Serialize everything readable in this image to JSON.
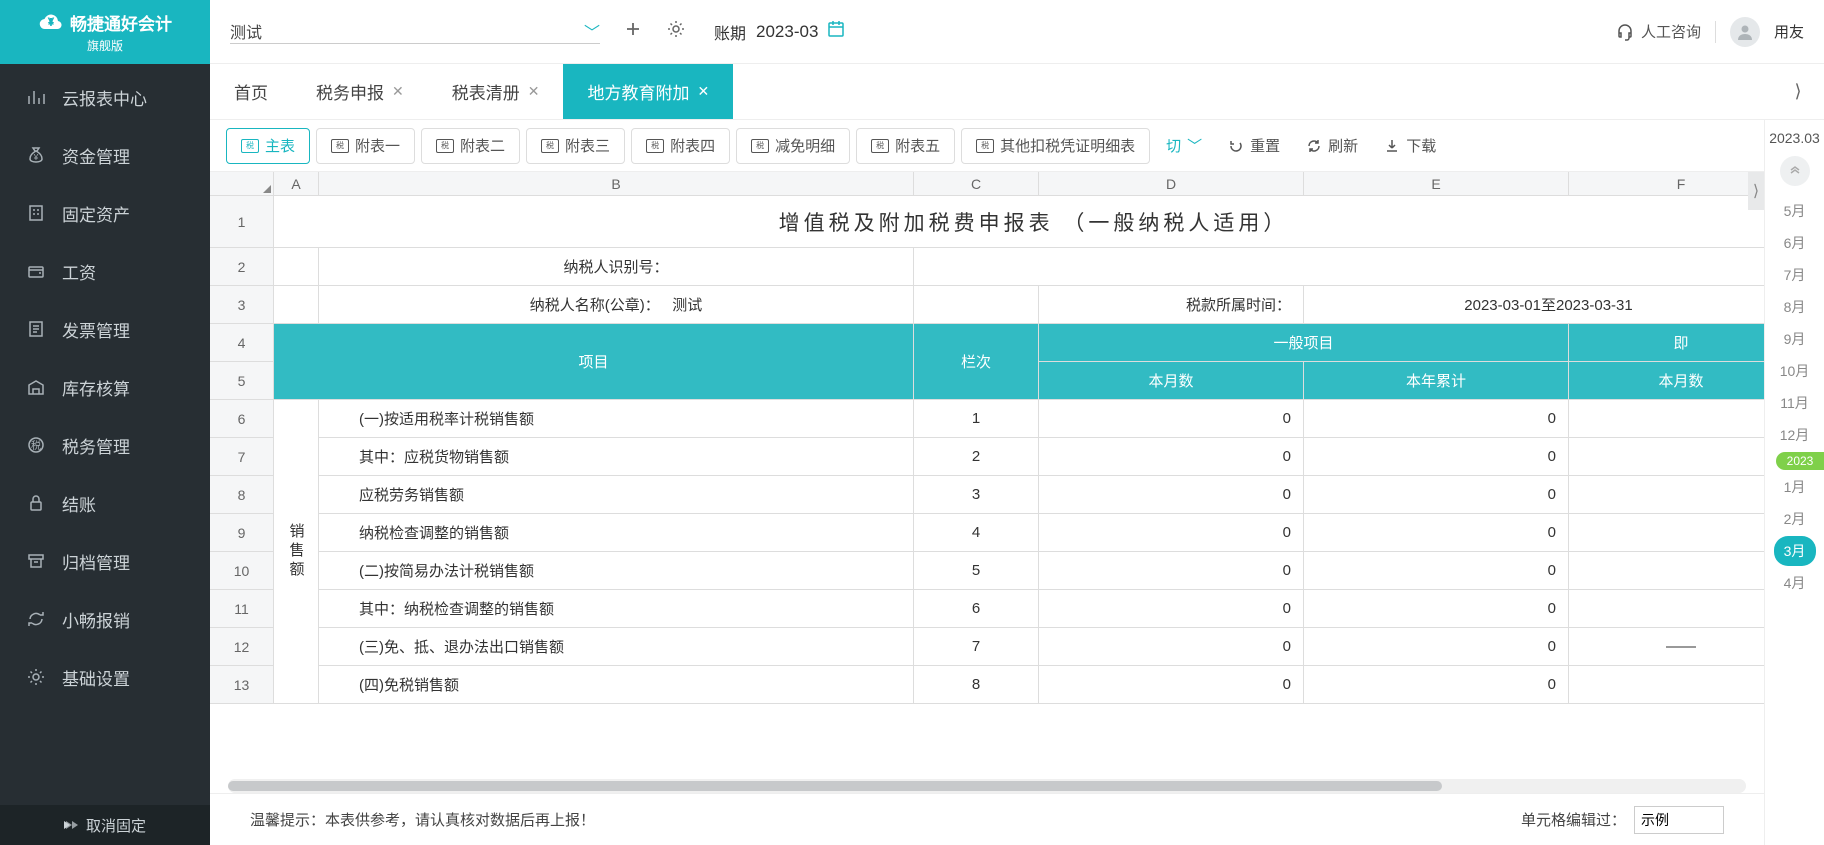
{
  "brand": {
    "name": "畅捷通好会计",
    "edition": "旗舰版"
  },
  "sidebar": {
    "items": [
      {
        "label": "云报表中心"
      },
      {
        "label": "资金管理"
      },
      {
        "label": "固定资产"
      },
      {
        "label": "工资"
      },
      {
        "label": "发票管理"
      },
      {
        "label": "库存核算"
      },
      {
        "label": "税务管理"
      },
      {
        "label": "结账"
      },
      {
        "label": "归档管理"
      },
      {
        "label": "小畅报销"
      },
      {
        "label": "基础设置"
      }
    ],
    "collapse": "取消固定"
  },
  "topbar": {
    "org": "测试",
    "period_label": "账期",
    "period_value": "2023-03",
    "consult": "人工咨询",
    "user": "用友"
  },
  "tabs": [
    {
      "label": "首页",
      "closable": false,
      "active": false
    },
    {
      "label": "税务申报",
      "closable": true,
      "active": false
    },
    {
      "label": "税表清册",
      "closable": true,
      "active": false
    },
    {
      "label": "地方教育附加",
      "closable": true,
      "active": true
    }
  ],
  "subtabs": [
    {
      "label": "主表",
      "active": true
    },
    {
      "label": "附表一"
    },
    {
      "label": "附表二"
    },
    {
      "label": "附表三"
    },
    {
      "label": "附表四"
    },
    {
      "label": "减免明细"
    },
    {
      "label": "附表五"
    },
    {
      "label": "其他扣税凭证明细表"
    }
  ],
  "toolbar": {
    "cut": "切",
    "reset": "重置",
    "refresh": "刷新",
    "download": "下载"
  },
  "sheet": {
    "columns": [
      "A",
      "B",
      "C",
      "D",
      "E",
      "F"
    ],
    "title": "增值税及附加税费申报表 （一般纳税人适用）",
    "taxpayer_id_label": "纳税人识别号：",
    "taxpayer_name_label": "纳税人名称(公章)：",
    "taxpayer_name_value": "测试",
    "period_owner_label": "税款所属时间：",
    "period_owner_value": "2023-03-01至2023-03-31",
    "hdr_project": "项目",
    "hdr_col": "栏次",
    "hdr_general": "一般项目",
    "hdr_immediate": "即",
    "hdr_month": "本月数",
    "hdr_year": "本年累计",
    "side_label": "销售额",
    "rows": [
      {
        "n": "6",
        "item": "(一)按适用税率计税销售额",
        "col": "1",
        "m": "0",
        "y": "0",
        "m2": ""
      },
      {
        "n": "7",
        "item": "其中：应税货物销售额",
        "col": "2",
        "m": "0",
        "y": "0",
        "m2": ""
      },
      {
        "n": "8",
        "item": "应税劳务销售额",
        "col": "3",
        "m": "0",
        "y": "0",
        "m2": ""
      },
      {
        "n": "9",
        "item": "纳税检查调整的销售额",
        "col": "4",
        "m": "0",
        "y": "0",
        "m2": ""
      },
      {
        "n": "10",
        "item": "(二)按简易办法计税销售额",
        "col": "5",
        "m": "0",
        "y": "0",
        "m2": ""
      },
      {
        "n": "11",
        "item": "其中：纳税检查调整的销售额",
        "col": "6",
        "m": "0",
        "y": "0",
        "m2": ""
      },
      {
        "n": "12",
        "item": "(三)免、抵、退办法出口销售额",
        "col": "7",
        "m": "0",
        "y": "0",
        "m2": "——"
      },
      {
        "n": "13",
        "item": "(四)免税销售额",
        "col": "8",
        "m": "0",
        "y": "0",
        "m2": ""
      }
    ]
  },
  "rail": {
    "period": "2023.03",
    "months": [
      "5月",
      "6月",
      "7月",
      "8月",
      "9月",
      "10月",
      "11月",
      "12月",
      "1月",
      "2月",
      "3月",
      "4月"
    ],
    "active_idx": 10,
    "year_break_idx": 8,
    "year_label": "2023"
  },
  "footer": {
    "hint": "温馨提示：本表供参考，请认真核对数据后再上报！",
    "edit_label": "单元格编辑过：",
    "edit_value": "示例"
  },
  "colors": {
    "accent": "#19b6c0",
    "teal_header": "#32bbc3",
    "sidebar_bg": "#272e33",
    "green_badge": "#7fd04a"
  }
}
